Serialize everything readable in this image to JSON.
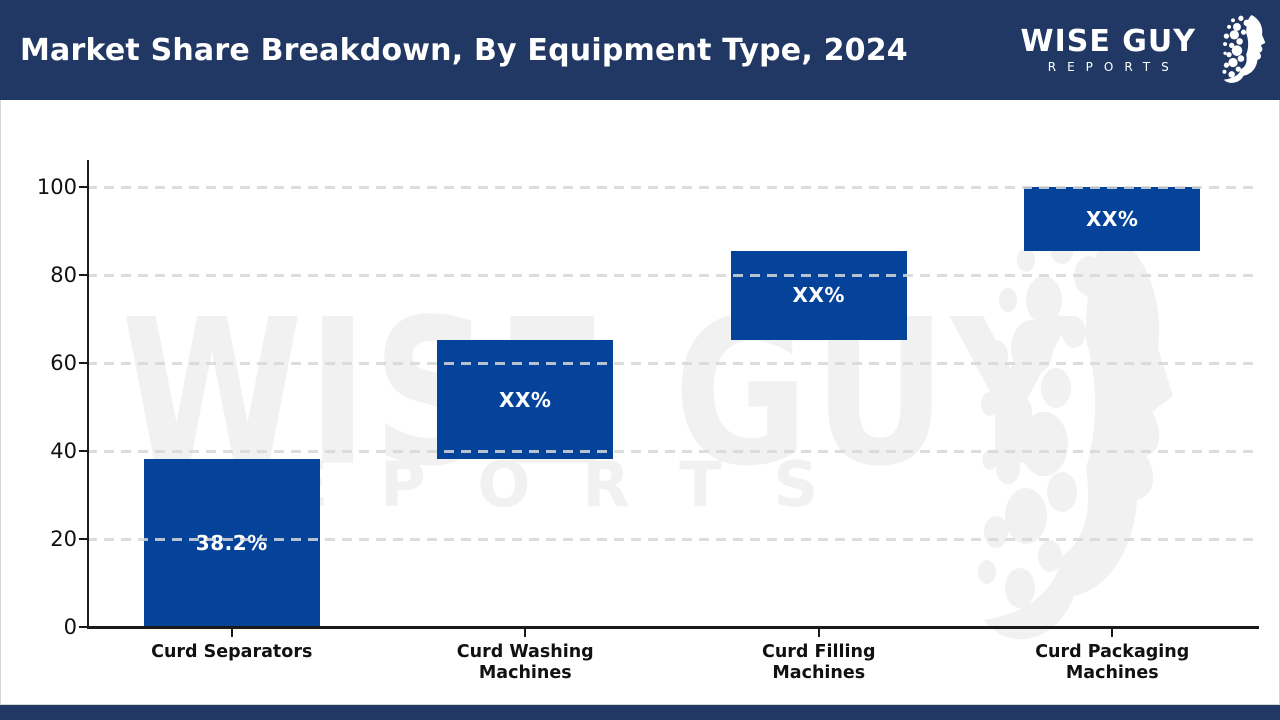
{
  "header": {
    "title": "Market Share Breakdown, By Equipment Type, 2024",
    "logo": {
      "line1": "WISE GUY",
      "line2": "REPORTS"
    }
  },
  "watermark": {
    "line1": "WISE GUY",
    "line2": "REPORTS"
  },
  "chart_data": {
    "type": "bar",
    "subtype": "floating-waterfall",
    "title": "Market Share Breakdown, By Equipment Type, 2024",
    "categories": [
      "Curd Separators",
      "Curd Washing Machines",
      "Curd Filling Machines",
      "Curd Packaging Machines"
    ],
    "bars": [
      {
        "category": "Curd Separators",
        "start": 0,
        "end": 38.2,
        "value": 38.2,
        "label": "38.2%"
      },
      {
        "category": "Curd Washing Machines",
        "start": 38.2,
        "end": 65.2,
        "value": 27.0,
        "label": "XX%"
      },
      {
        "category": "Curd Filling Machines",
        "start": 65.2,
        "end": 85.5,
        "value": 20.3,
        "label": "XX%"
      },
      {
        "category": "Curd Packaging Machines",
        "start": 85.5,
        "end": 100,
        "value": 14.5,
        "label": "XX%"
      }
    ],
    "yticks": [
      0,
      20,
      40,
      60,
      80,
      100
    ],
    "ylim": [
      0,
      106
    ],
    "xlabel": "",
    "ylabel": "",
    "grid": "dashed-horizontal",
    "legend": "none",
    "bar_label_color": "#ffffff"
  },
  "colors": {
    "header_bg": "#213864",
    "footer_bg": "#213864",
    "bar": "#05439b",
    "watermark": "#f1f1f1",
    "grid": "#d7d7d7",
    "axis": "#1a1a1a"
  }
}
